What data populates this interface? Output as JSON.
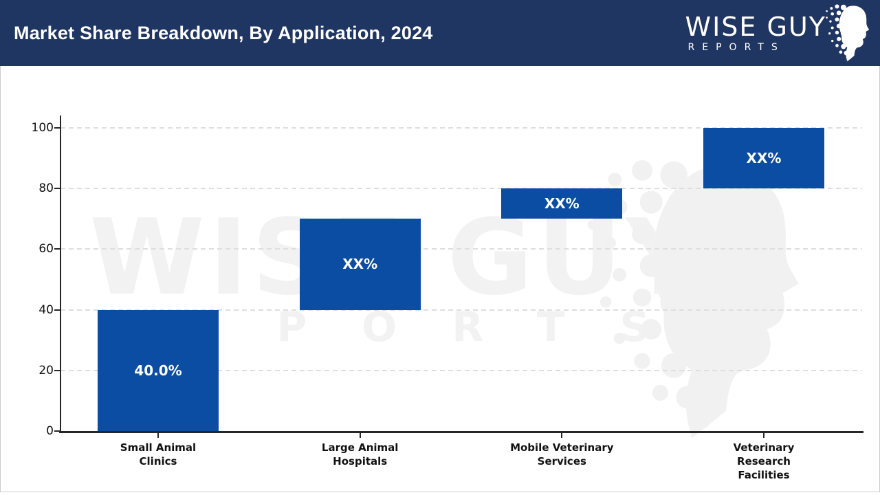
{
  "header": {
    "title": "Market Share Breakdown, By Application, 2024",
    "logo": {
      "line1": "WISE GUY",
      "line2": "REPORTS"
    }
  },
  "chart_data": {
    "type": "bar",
    "subtype": "waterfall",
    "title": "Market Share Breakdown, By Application, 2024",
    "categories": [
      [
        "Small Animal",
        "Clinics"
      ],
      [
        "Large Animal",
        "Hospitals"
      ],
      [
        "Mobile Veterinary",
        "Services"
      ],
      [
        "Veterinary",
        "Research",
        "Facilities"
      ]
    ],
    "series": [
      {
        "name": "Market share (%)",
        "segments": [
          {
            "from": 0,
            "to": 40,
            "label": "40.0%"
          },
          {
            "from": 40,
            "to": 70,
            "label": "XX%"
          },
          {
            "from": 70,
            "to": 80,
            "label": "XX%"
          },
          {
            "from": 80,
            "to": 100,
            "label": "XX%"
          }
        ]
      }
    ],
    "yticks": [
      0,
      20,
      40,
      60,
      80,
      100
    ],
    "ylim": [
      0,
      100
    ],
    "grid": "horizontal-dashed",
    "legend": "none",
    "bar_color": "#0b4da2",
    "bar_label_color": "#ffffff",
    "watermark": {
      "line1": "WISE GUY",
      "line2": "REPORTS"
    }
  }
}
